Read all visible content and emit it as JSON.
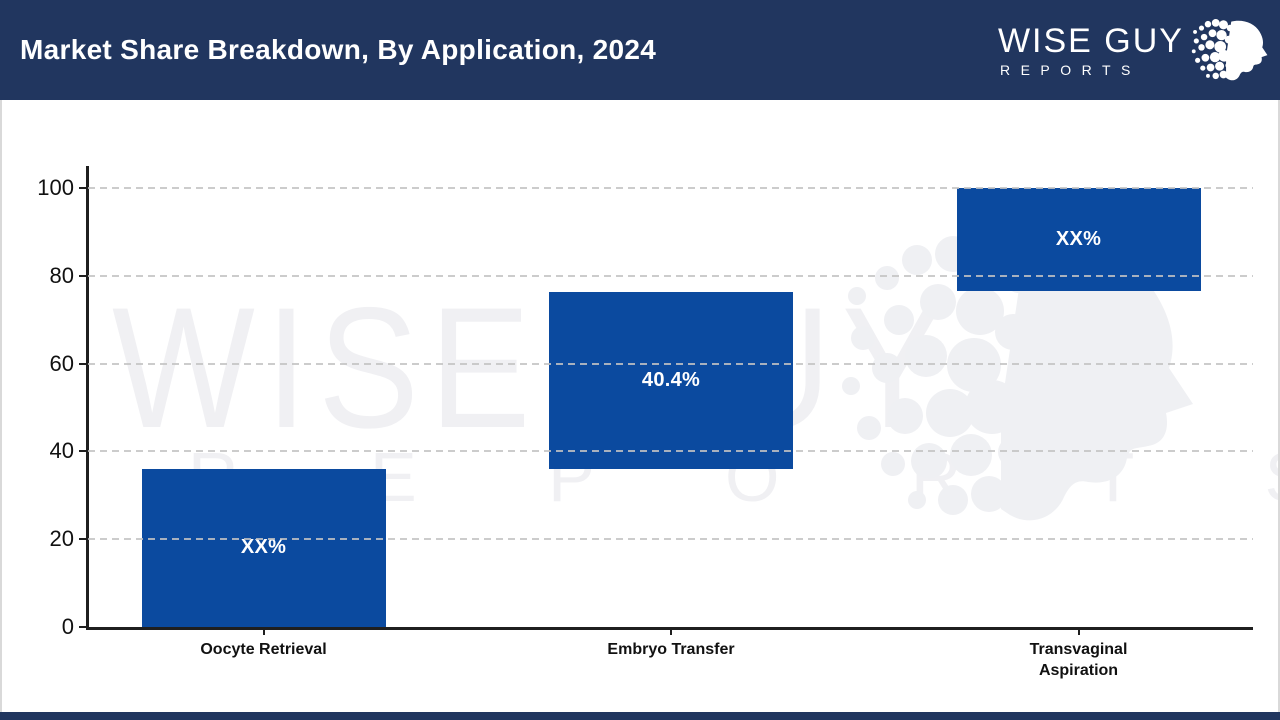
{
  "header": {
    "title": "Market Share Breakdown, By Application, 2024",
    "logo": {
      "wordmark": "WISE GUY",
      "subtext": "REPORTS"
    }
  },
  "watermark": {
    "line1": "WISE GUY",
    "line2": "R E P O R T S"
  },
  "colors": {
    "header_bg": "#21365F",
    "footer_bg": "#21365F",
    "bar_fill": "#0B4A9F",
    "bar_label": "#FFFFFF",
    "axis": "#1F1F1F",
    "tick_label": "#111111",
    "gridline": "#C9C9C9",
    "watermark": "#F0F0F3",
    "background": "#FFFFFF"
  },
  "chart_data": {
    "type": "bar",
    "subtype": "waterfall (stacked cumulative share, floating bars)",
    "title": "Market Share Breakdown, By Application, 2024",
    "categories": [
      "Oocyte Retrieval",
      "Embryo Transfer",
      "Transvaginal Aspiration"
    ],
    "bars": [
      {
        "category": "Oocyte Retrieval",
        "start": 0,
        "end": 36,
        "label": "XX%",
        "value_pct": null
      },
      {
        "category": "Embryo Transfer",
        "start": 35.9,
        "end": 76.3,
        "label": "40.4%",
        "value_pct": 40.4
      },
      {
        "category": "Transvaginal Aspiration",
        "start": 76.6,
        "end": 100,
        "label": "XX%",
        "value_pct": null
      }
    ],
    "xlabel": "",
    "ylabel": "",
    "ylim": [
      0,
      100
    ],
    "yticks": [
      0,
      20,
      40,
      60,
      80,
      100
    ],
    "grid": "horizontal dashed light-gray, drawn over bars",
    "legend": "none"
  }
}
